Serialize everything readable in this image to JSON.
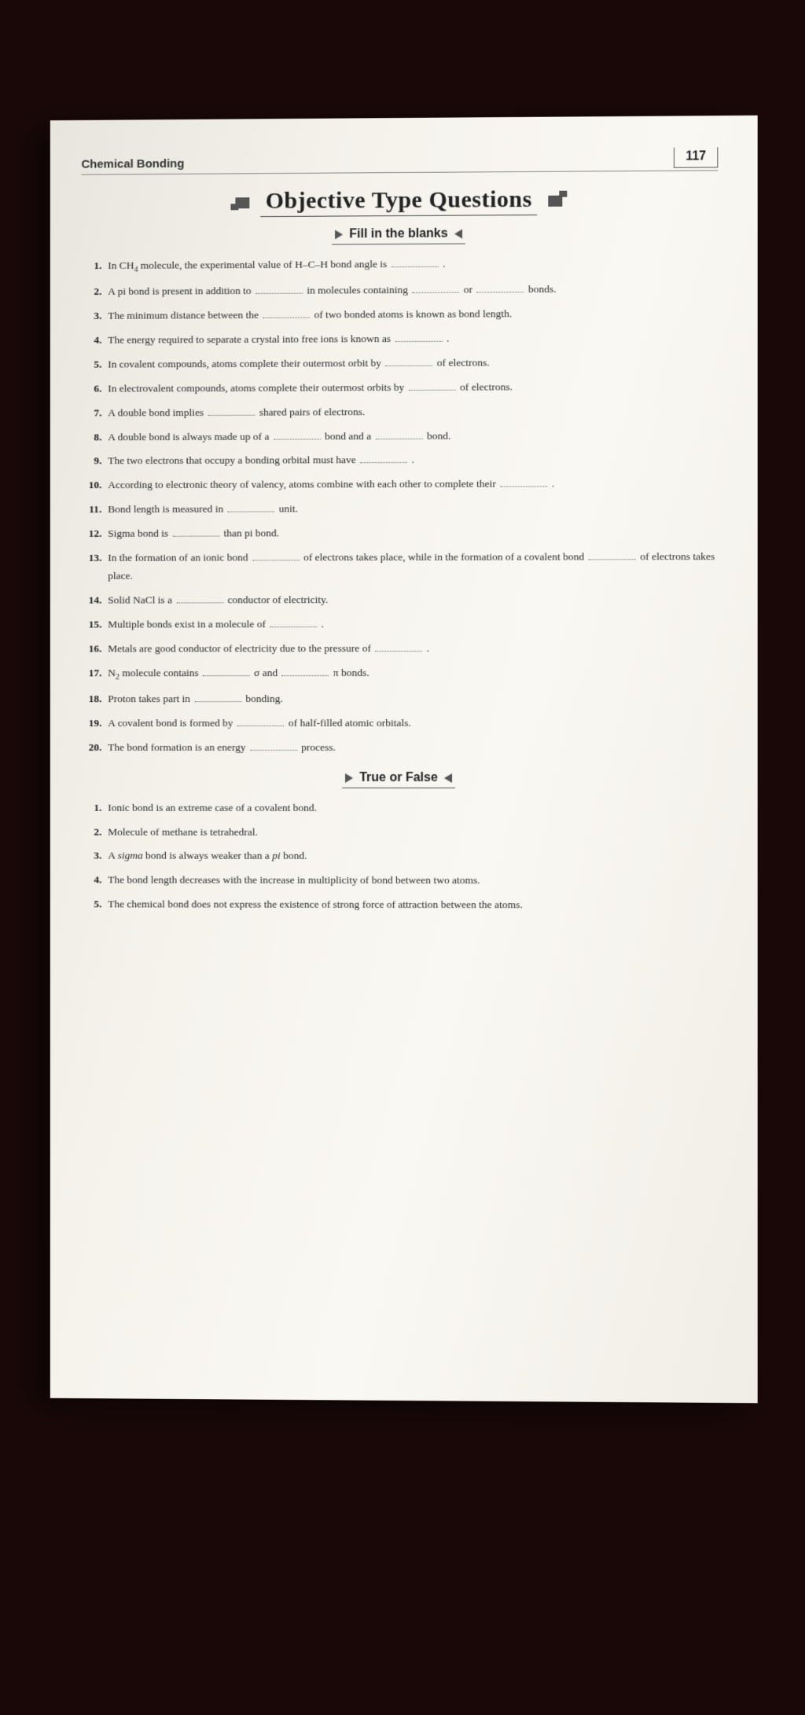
{
  "page": {
    "chapter": "Chemical Bonding",
    "page_number": "117",
    "main_title": "Objective Type Questions",
    "colors": {
      "page_bg_from": "#e8e4de",
      "page_bg_to": "#faf8f3",
      "body_bg": "#1a0808",
      "text": "#2a2a2a",
      "rule": "#888",
      "accent": "#555"
    },
    "typography": {
      "title_font": "Comic Sans MS / handwriting",
      "title_size_pt": 22,
      "body_font": "Times New Roman",
      "body_size_pt": 10,
      "section_font": "Arial",
      "section_size_pt": 12
    }
  },
  "sections": [
    {
      "title": "Fill in the blanks",
      "items": [
        {
          "pre": "In CH",
          "sub": "4",
          "post": " molecule, the experimental value of H–C–H bond angle is ",
          "tail": " ."
        },
        {
          "text_parts": [
            "A pi bond is present in addition to ",
            " in molecules containing ",
            " or ",
            " bonds."
          ]
        },
        {
          "text_parts": [
            "The minimum distance between the ",
            " of two bonded atoms is known as bond length."
          ]
        },
        {
          "text_parts": [
            "The energy required to separate a crystal into free ions is known as ",
            " ."
          ]
        },
        {
          "text_parts": [
            "In covalent compounds, atoms complete their outermost orbit by ",
            " of electrons."
          ]
        },
        {
          "text_parts": [
            "In electrovalent compounds, atoms complete their outermost orbits by ",
            " of electrons."
          ]
        },
        {
          "text_parts": [
            "A double bond implies ",
            " shared pairs of electrons."
          ]
        },
        {
          "text_parts": [
            "A double bond is always made up of a ",
            " bond and a ",
            " bond."
          ]
        },
        {
          "text_parts": [
            "The two electrons that occupy a bonding orbital must have ",
            " ."
          ]
        },
        {
          "text_parts": [
            "According to electronic theory of valency, atoms combine with each other to complete their ",
            " ."
          ]
        },
        {
          "text_parts": [
            "Bond length is measured in ",
            " unit."
          ]
        },
        {
          "text_parts": [
            "Sigma bond is ",
            " than pi bond."
          ]
        },
        {
          "text_parts": [
            "In the formation of an ionic bond ",
            " of electrons takes place, while in the formation of a covalent bond ",
            " of electrons takes place."
          ]
        },
        {
          "text_parts": [
            "Solid NaCl is a ",
            " conductor of electricity."
          ]
        },
        {
          "text_parts": [
            "Multiple bonds exist in a molecule of ",
            " ."
          ]
        },
        {
          "text_parts": [
            "Metals are good conductor of electricity due to the pressure of ",
            " ."
          ]
        },
        {
          "pre": "N",
          "sub": "2",
          "post": " molecule contains ",
          "mid": " σ and ",
          "tail": " π bonds."
        },
        {
          "text_parts": [
            "Proton takes part in ",
            " bonding."
          ]
        },
        {
          "text_parts": [
            "A covalent bond is formed by ",
            " of half-filled atomic orbitals."
          ]
        },
        {
          "text_parts": [
            "The bond formation is an energy ",
            " process."
          ]
        }
      ]
    },
    {
      "title": "True or False",
      "items": [
        {
          "plain": "Ionic bond is an extreme case of a covalent bond."
        },
        {
          "plain": "Molecule of methane is tetrahedral."
        },
        {
          "plain_html": "A <i>sigma</i> bond is always weaker than a <i>pi</i> bond."
        },
        {
          "plain": "The bond length decreases with the increase in multiplicity of bond between two atoms."
        },
        {
          "plain": "The chemical bond does not express the existence of strong force of attraction between the atoms."
        }
      ]
    }
  ]
}
